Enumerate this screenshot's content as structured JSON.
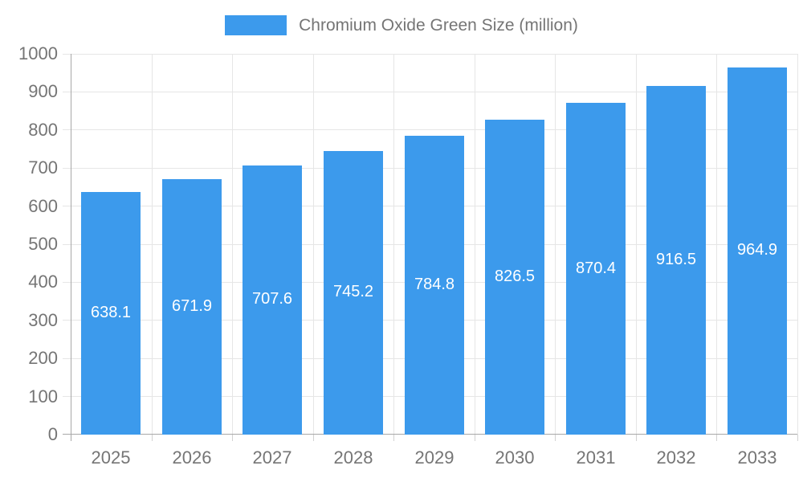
{
  "chart_data": {
    "type": "bar",
    "title": "Chromium Oxide Green Size (million)",
    "legend": {
      "label": "Chromium Oxide Green Size (million)",
      "position": "top"
    },
    "categories": [
      "2025",
      "2026",
      "2027",
      "2028",
      "2029",
      "2030",
      "2031",
      "2032",
      "2033"
    ],
    "series": [
      {
        "name": "Chromium Oxide Green Size (million)",
        "values": [
          638.1,
          671.9,
          707.6,
          745.2,
          784.8,
          826.5,
          870.4,
          916.5,
          964.9
        ]
      }
    ],
    "value_labels": [
      "638.1",
      "671.9",
      "707.6",
      "745.2",
      "784.8",
      "826.5",
      "870.4",
      "916.5",
      "964.9"
    ],
    "xlabel": "",
    "ylabel": "",
    "ylim": [
      0,
      1000
    ],
    "ytick_step": 100,
    "ytick_labels": [
      "0",
      "100",
      "200",
      "300",
      "400",
      "500",
      "600",
      "700",
      "800",
      "900",
      "1000"
    ],
    "grid": true,
    "colors": {
      "bar": "#3C9AEC",
      "grid": "#E6E6E6",
      "axis": "#A8A8A8",
      "tick": "#D2D2D2",
      "axis_text": "#757575",
      "value_text": "#FFFFFF",
      "background": "#FFFFFF"
    }
  }
}
